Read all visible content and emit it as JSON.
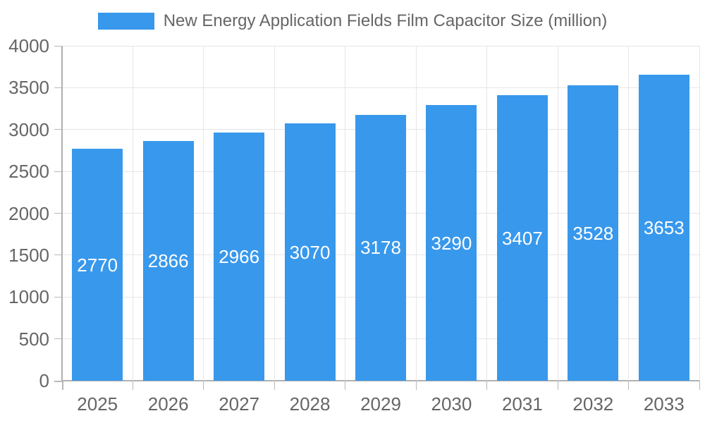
{
  "chart_data": {
    "type": "bar",
    "title": "New Energy Application Fields Film Capacitor Size (million)",
    "categories": [
      "2025",
      "2026",
      "2027",
      "2028",
      "2029",
      "2030",
      "2031",
      "2032",
      "2033"
    ],
    "values": [
      2770,
      2866,
      2966,
      3070,
      3178,
      3290,
      3407,
      3528,
      3653
    ],
    "xlabel": "",
    "ylabel": "",
    "ylim": [
      0,
      4000
    ],
    "ytick_step": 500,
    "legend_position": "top",
    "grid": true,
    "colors": {
      "bar": "#3898ec",
      "grid": "#e6e6e6",
      "axis": "#b0b0b0",
      "tick": "#b8b8b8",
      "text": "#666666",
      "value_label": "#ffffff",
      "background": "#ffffff"
    }
  }
}
